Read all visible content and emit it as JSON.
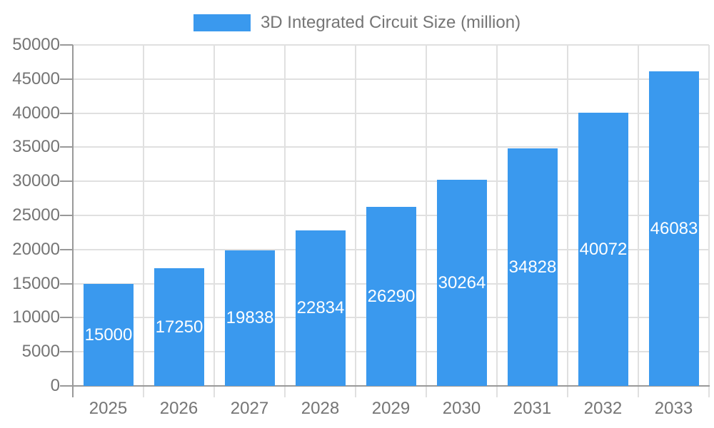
{
  "legend": {
    "label": "3D Integrated Circuit Size (million)"
  },
  "chart_data": {
    "type": "bar",
    "title": "3D Integrated Circuit Size (million)",
    "categories": [
      "2025",
      "2026",
      "2027",
      "2028",
      "2029",
      "2030",
      "2031",
      "2032",
      "2033"
    ],
    "values": [
      15000,
      17250,
      19838,
      22834,
      26290,
      30264,
      34828,
      40072,
      46083
    ],
    "xlabel": "",
    "ylabel": "",
    "ylim": [
      0,
      50000
    ],
    "y_ticks": [
      0,
      5000,
      10000,
      15000,
      20000,
      25000,
      30000,
      35000,
      40000,
      45000,
      50000
    ],
    "grid": true,
    "legend_position": "top-center",
    "value_labels": "inside-center",
    "colors": {
      "bar": "#3a99ee",
      "axis_text": "#757575",
      "legend_text": "#757575",
      "grid_line": "#e0e0e0",
      "axis_line": "#999999",
      "value_label": "#ffffff",
      "background": "#ffffff"
    }
  }
}
